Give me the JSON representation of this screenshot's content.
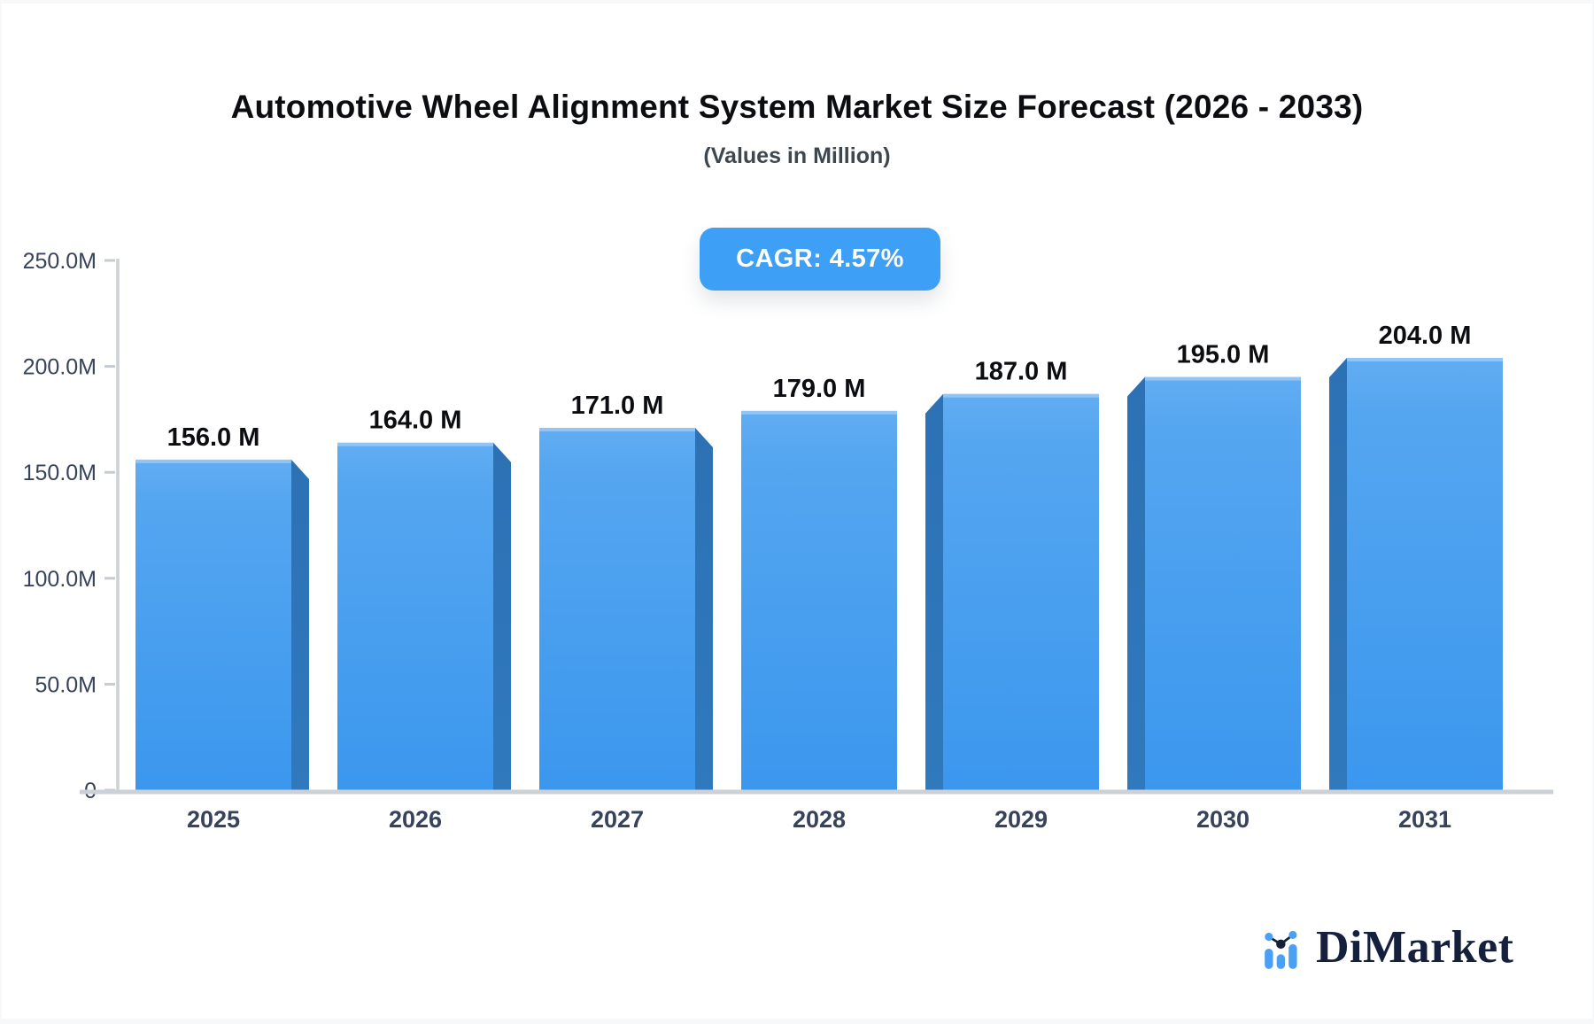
{
  "header": {
    "title": "Automotive Wheel Alignment System Market Size Forecast (2026 - 2033)",
    "subtitle": "(Values in Million)",
    "cagr_badge": "CAGR: 4.57%"
  },
  "chart_data": {
    "type": "bar",
    "title": "Automotive Wheel Alignment System Market Size Forecast (2026 - 2033)",
    "subtitle": "(Values in Million)",
    "unit": "Million",
    "cagr_percent": 4.57,
    "categories": [
      "2025",
      "2026",
      "2027",
      "2028",
      "2029",
      "2030",
      "2031"
    ],
    "values": [
      156.0,
      164.0,
      171.0,
      179.0,
      187.0,
      195.0,
      204.0
    ],
    "value_labels": [
      "156.0 M",
      "164.0 M",
      "171.0 M",
      "179.0 M",
      "187.0 M",
      "195.0 M",
      "204.0 M"
    ],
    "y_tick_labels": [
      "250.0M",
      "200.0M",
      "150.0M",
      "100.0M",
      "50.0M",
      "0"
    ],
    "y_tick_values": [
      250,
      200,
      150,
      100,
      50,
      0
    ],
    "ylim": [
      0,
      250
    ],
    "grid": false,
    "legend": "none",
    "style_3d": true
  },
  "branding": {
    "logo_text": "DiMarket",
    "logo_icon": "bar-chart-line-icon"
  },
  "colors": {
    "bar_face_top": "#60acf2",
    "bar_face_bottom": "#3b97ee",
    "bar_side": "#2e76ba",
    "badge_blue": "#3d9ff5",
    "axis_line": "#ccd1d7",
    "axis_text": "#36435a",
    "value_text": "#0b0d10",
    "logo_navy": "#15203c",
    "logo_blue": "#4aa0f5",
    "background": "#ffffff"
  }
}
